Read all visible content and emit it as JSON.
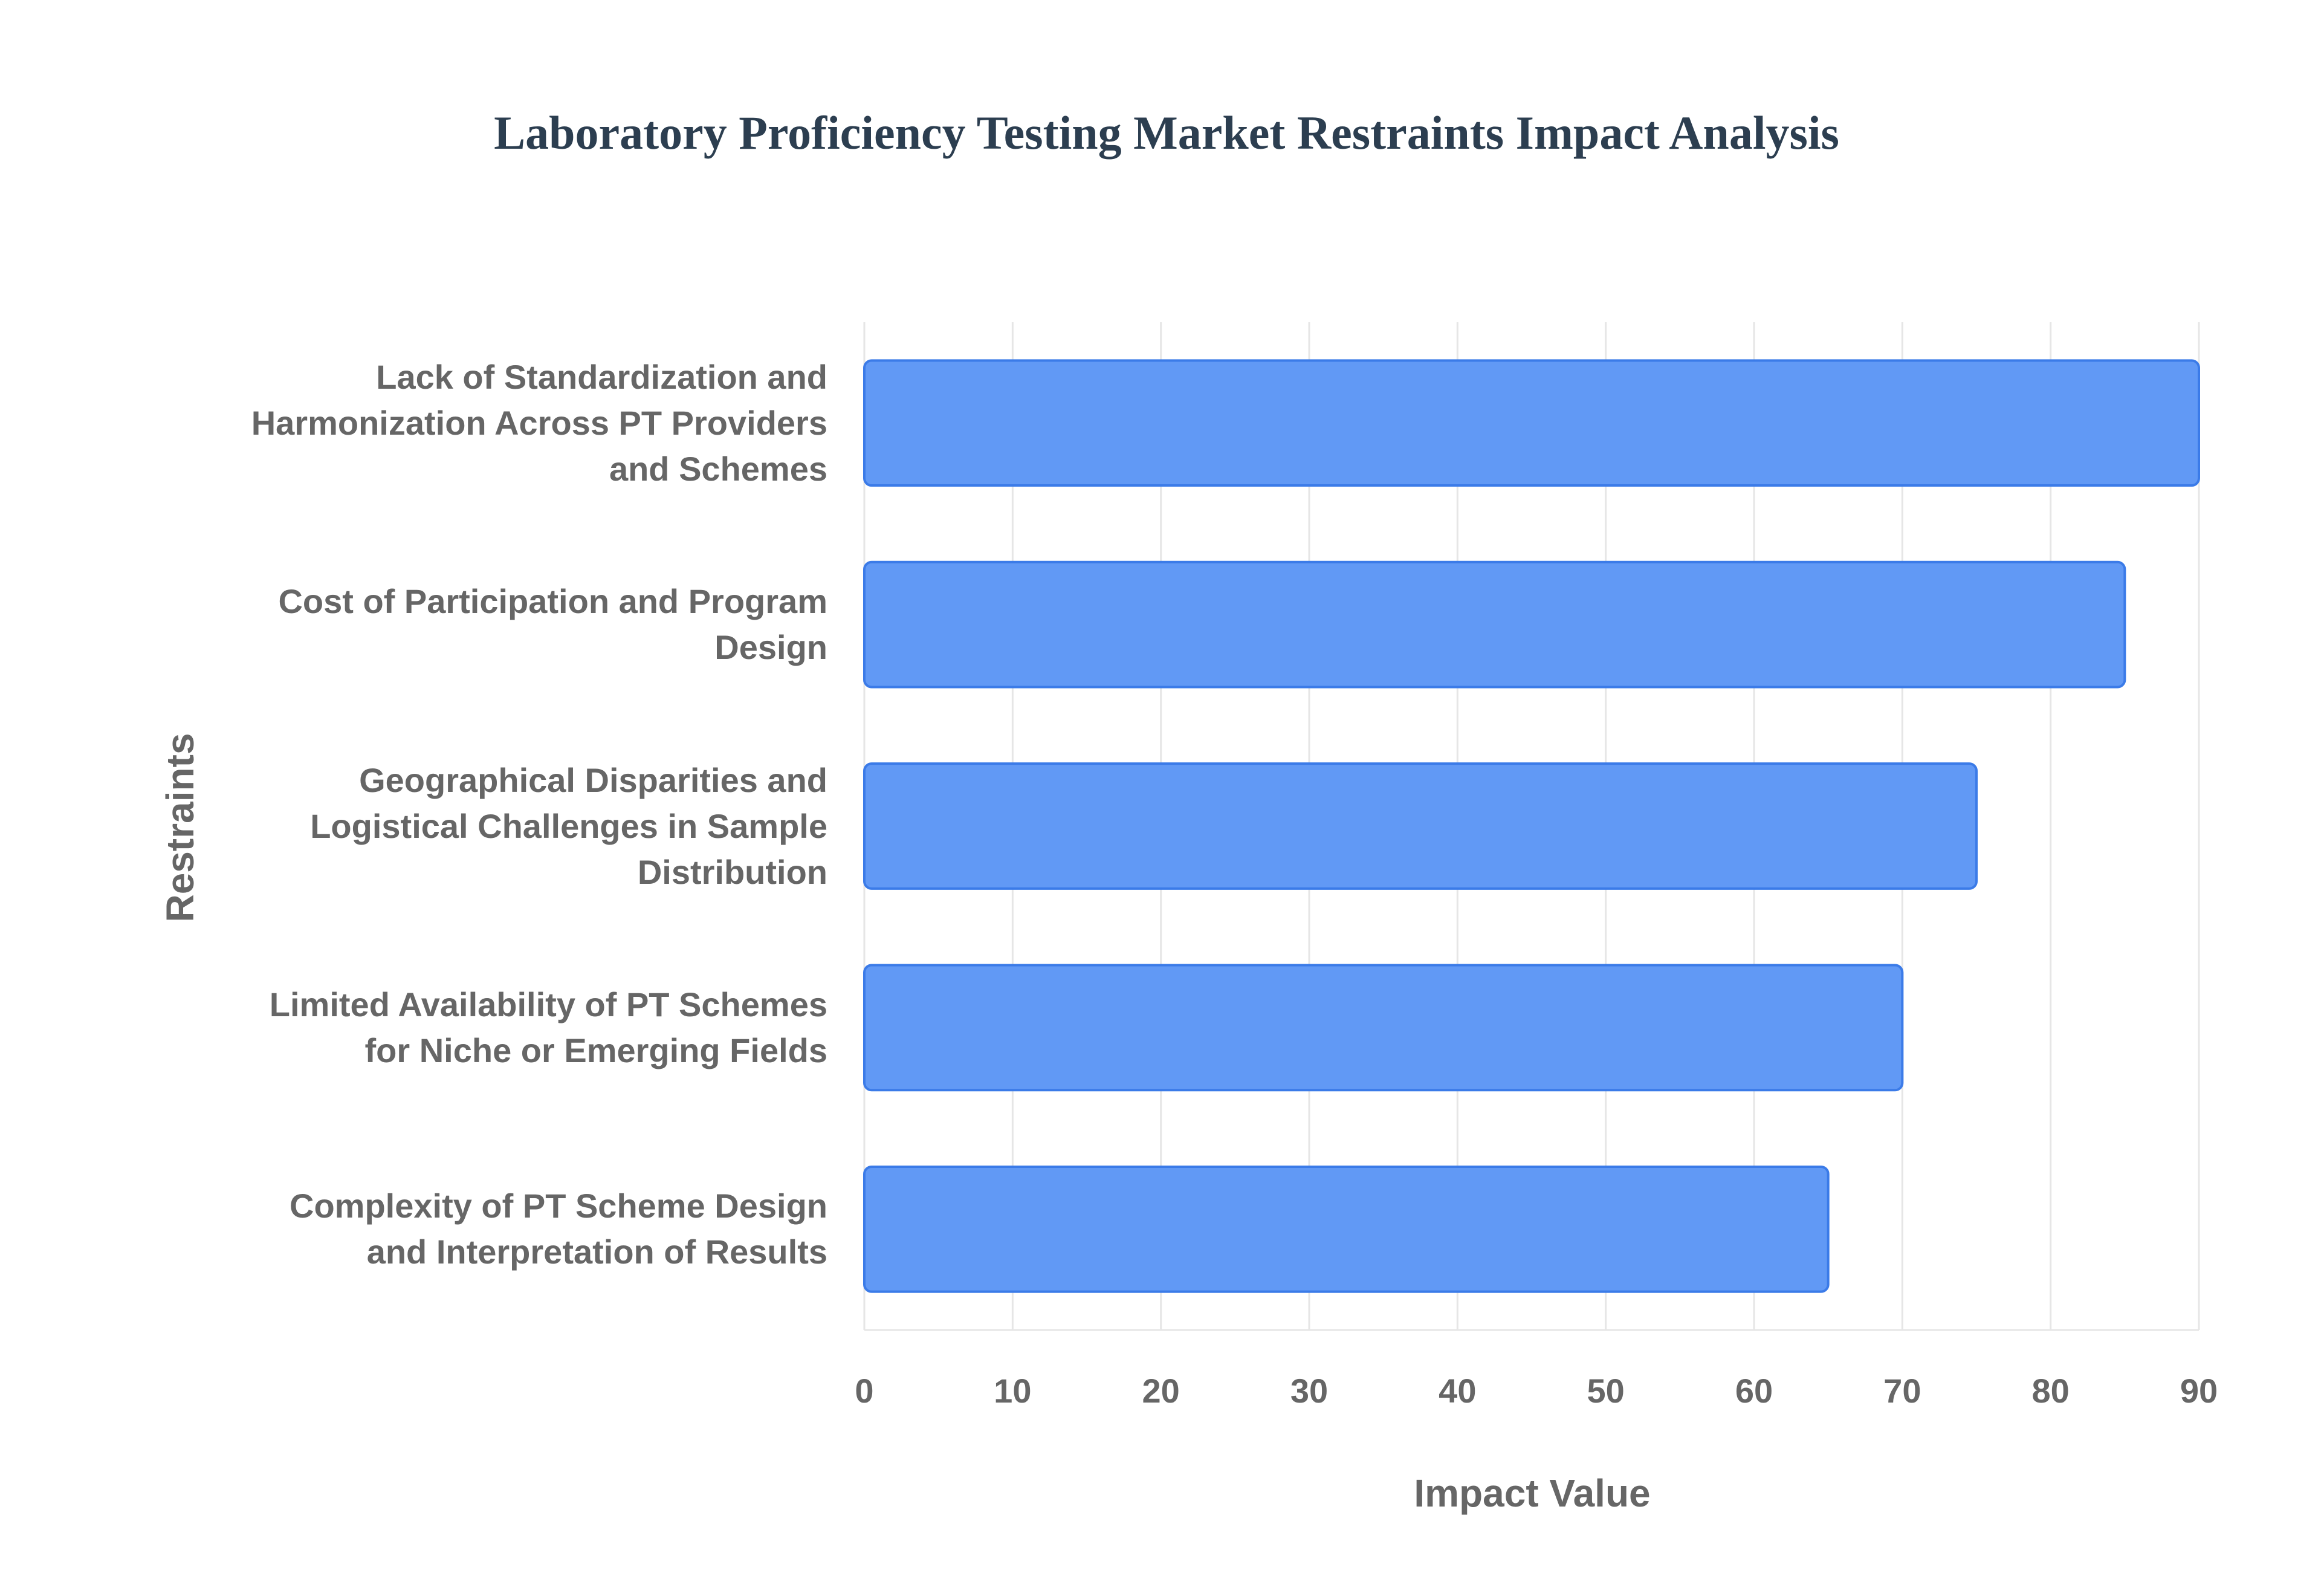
{
  "chart_data": {
    "type": "bar",
    "orientation": "horizontal",
    "title": "Laboratory Proficiency Testing Market Restraints Impact Analysis",
    "x_label": "Impact Value",
    "y_label": "Restraints",
    "categories": [
      "Lack of Standardization and Harmonization Across PT Providers and Schemes",
      "Cost of Participation and Program Design",
      "Geographical Disparities and Logistical Challenges in Sample Distribution",
      "Limited Availability of PT Schemes for Niche or Emerging Fields",
      "Complexity of PT Scheme Design and Interpretation of Results"
    ],
    "values": [
      90,
      85,
      75,
      70,
      65
    ],
    "color": "#6199f5",
    "xlim": [
      0,
      90
    ],
    "xticks": [
      0,
      10,
      20,
      30,
      40,
      50,
      60,
      70,
      80,
      90
    ],
    "grid": true
  }
}
